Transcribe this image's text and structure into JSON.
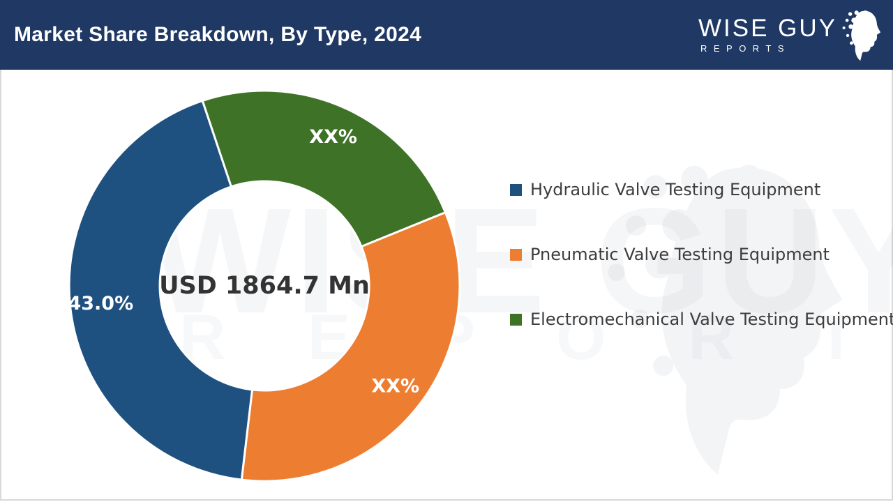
{
  "header": {
    "title": "Market Share Breakdown, By Type, 2024",
    "background_color": "#1f3864",
    "logo": {
      "wordmark": "WISE GUY",
      "subtext": "REPORTS"
    }
  },
  "watermark": {
    "wordmark": "WISE GUY",
    "subtext": "R E P O R T S"
  },
  "chart_data": {
    "type": "pie",
    "subtype": "donut",
    "title": "Market Share Breakdown, By Type, 2024",
    "center_label": "USD 1864.7 Mn",
    "start_angle_deg": -18.5,
    "legend_position": "right",
    "segments": [
      {
        "name": "Hydraulic Valve Testing Equipment",
        "value_pct": 43.0,
        "display_label": "43.0%",
        "color": "#1f5180"
      },
      {
        "name": "Pneumatic Valve Testing Equipment",
        "value_pct": 33.0,
        "display_label": "XX%",
        "color": "#ed7d31"
      },
      {
        "name": "Electromechanical Valve Testing Equipment",
        "value_pct": 24.0,
        "display_label": "XX%",
        "color": "#3e7227"
      }
    ]
  }
}
